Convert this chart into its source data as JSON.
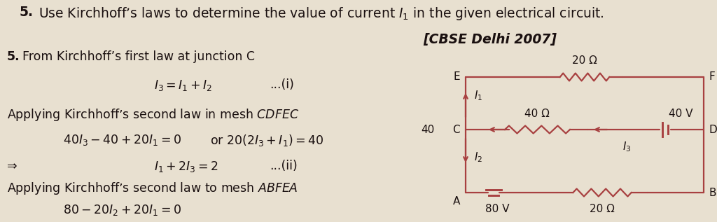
{
  "bg_color": "#e8e0d0",
  "text_color": "#1a1010",
  "circuit_color": "#a84040",
  "question_number": "5.",
  "question_text": "Use Kirchhoff’s laws to determine the value of current $I_1$ in the given electrical circuit.",
  "reference": "[CBSE Delhi 2007]",
  "sol_number": "5.",
  "line1": "From Kirchhoff’s first law at junction C",
  "eq1": "$I_3 = I_1 + I_2$",
  "eq1_label": "...(i)",
  "line2": "Applying Kirchhoff’s second law in mesh $CDFEC$",
  "eq2_a": "$40I_3 - 40 + 20I_1 = 0$",
  "eq2_b": "or $20(2I_3 + I_1) = 40$",
  "arrow": "⇒",
  "eq3": "$I_1 + 2I_3 = 2$",
  "eq3_label": "...(ii)",
  "line3": "Applying Kirchhoff’s second law to mesh $ABFEA$",
  "eq4": "$80 - 20I_2 + 20I_1 = 0$",
  "circuit_label_E": "E",
  "circuit_label_F": "F",
  "circuit_label_C": "C",
  "circuit_label_D": "D",
  "circuit_label_A": "A",
  "circuit_label_B": "B",
  "label_20ohm_top": "20 Ω",
  "label_40ohm": "40 Ω",
  "label_40V": "40 V",
  "label_80V": "80 V",
  "label_20ohm_bot": "20 Ω",
  "label_I1": "$I_1$",
  "label_I2": "$I_2$",
  "label_I3": "$I_3$",
  "label_40": "40"
}
